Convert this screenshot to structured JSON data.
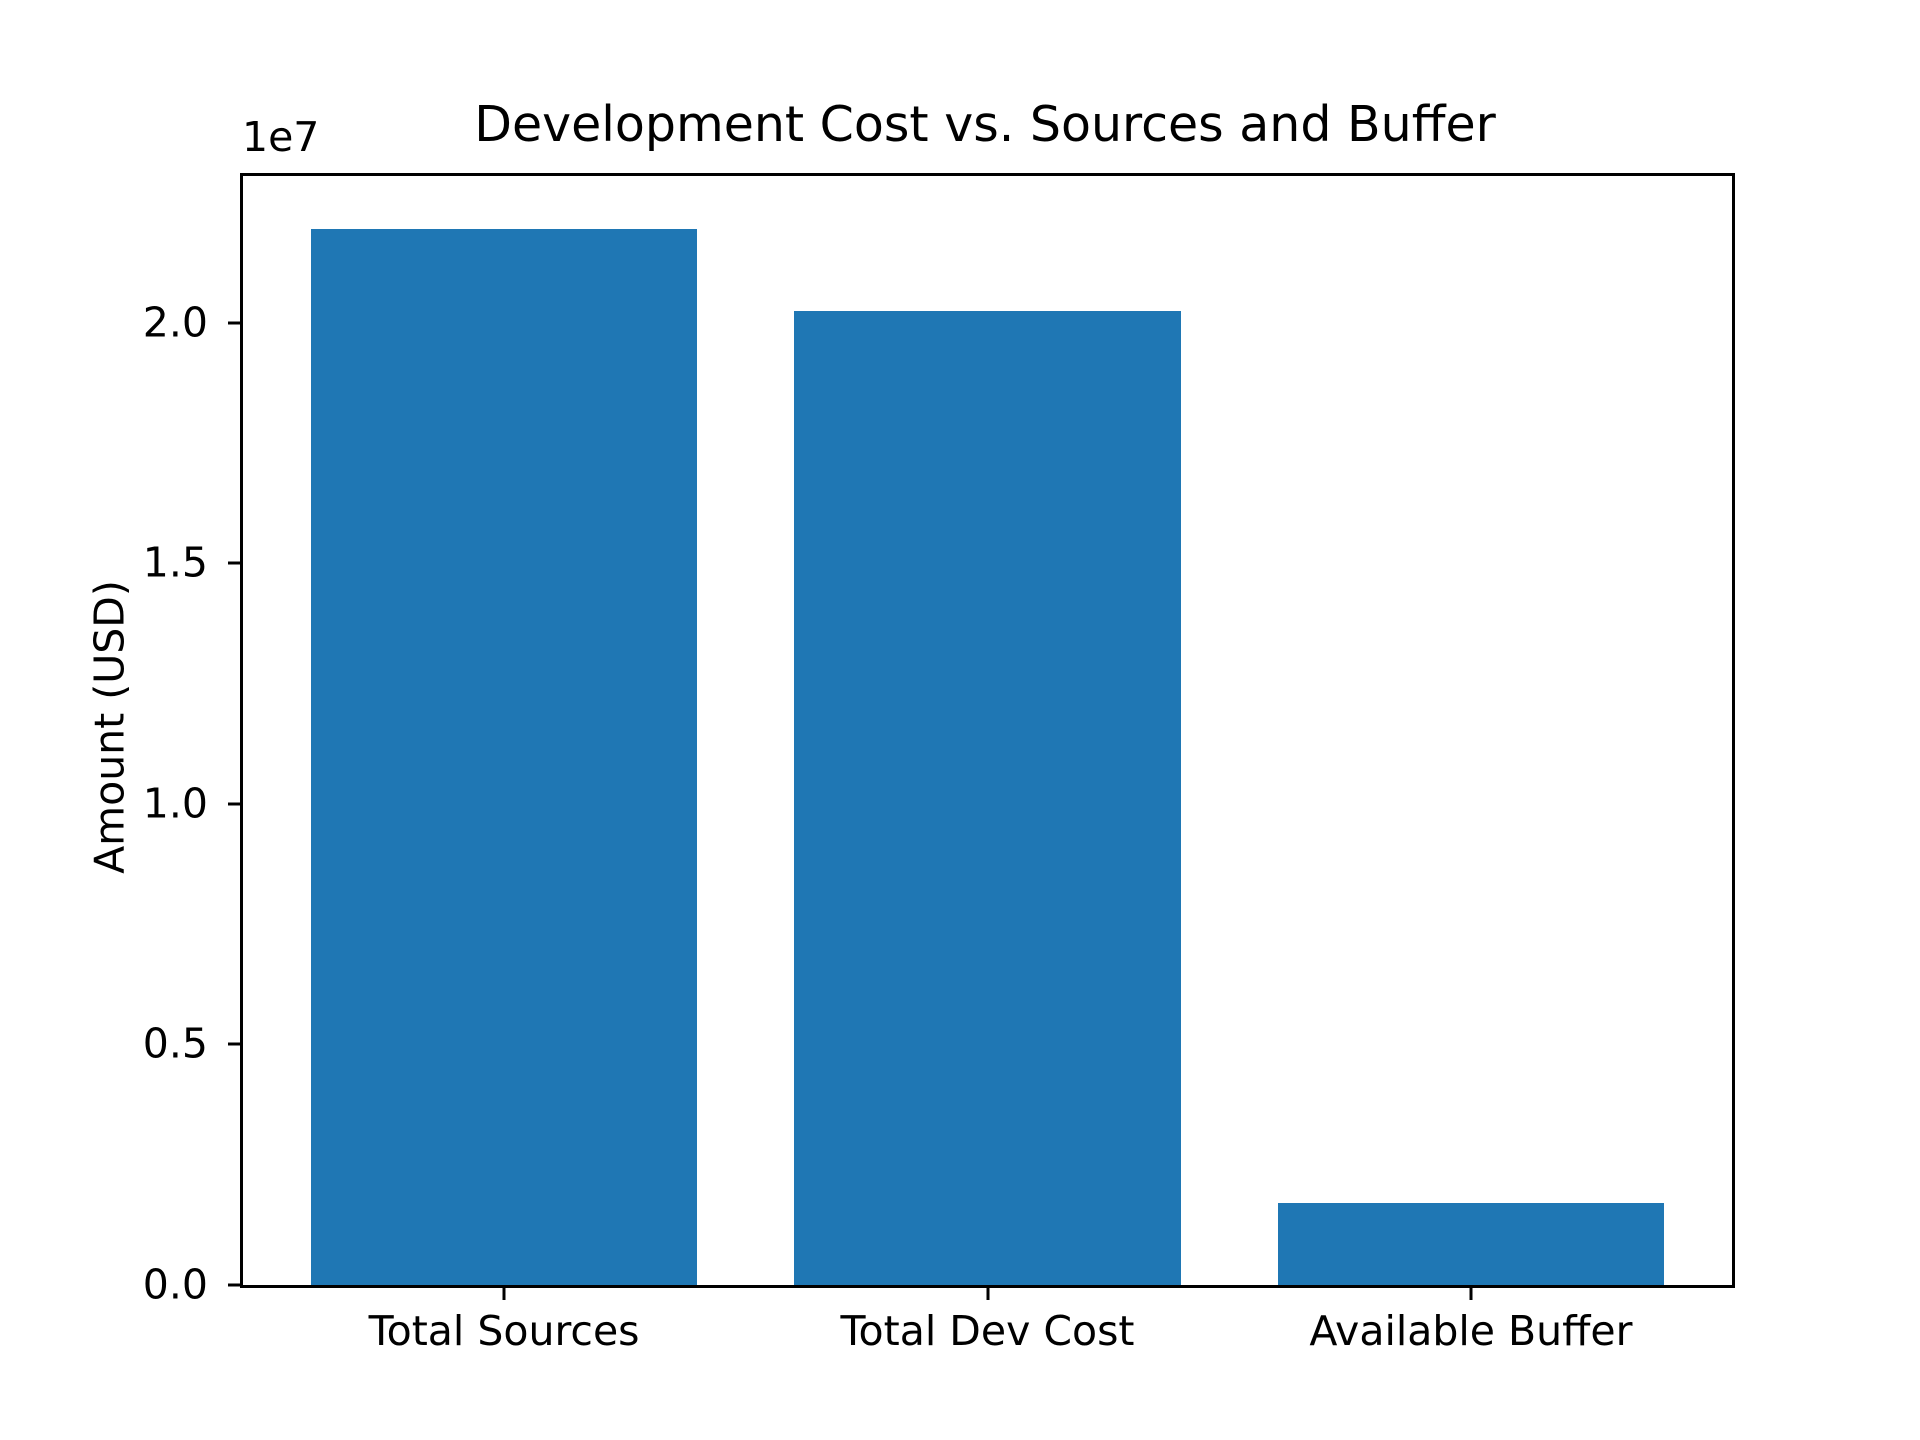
{
  "figure": {
    "background": "#ffffff",
    "text_color": "#000000"
  },
  "chart_data": {
    "type": "bar",
    "title": "Development Cost vs. Sources and Buffer",
    "xlabel": "",
    "ylabel": "Amount (USD)",
    "offset_text": "1e7",
    "categories": [
      "Total Sources",
      "Total Dev Cost",
      "Available Buffer"
    ],
    "values": [
      21950000,
      20250000,
      1700000
    ],
    "bar_color": "#1f77b4",
    "ylim": [
      0,
      23050000
    ],
    "xlim": [
      -0.54,
      2.54
    ],
    "bar_width": 0.8,
    "y_ticks": [
      0,
      5000000,
      10000000,
      15000000,
      20000000
    ],
    "y_tick_labels": [
      "0.0",
      "0.5",
      "1.0",
      "1.5",
      "2.0"
    ],
    "grid": false,
    "legend": false
  }
}
